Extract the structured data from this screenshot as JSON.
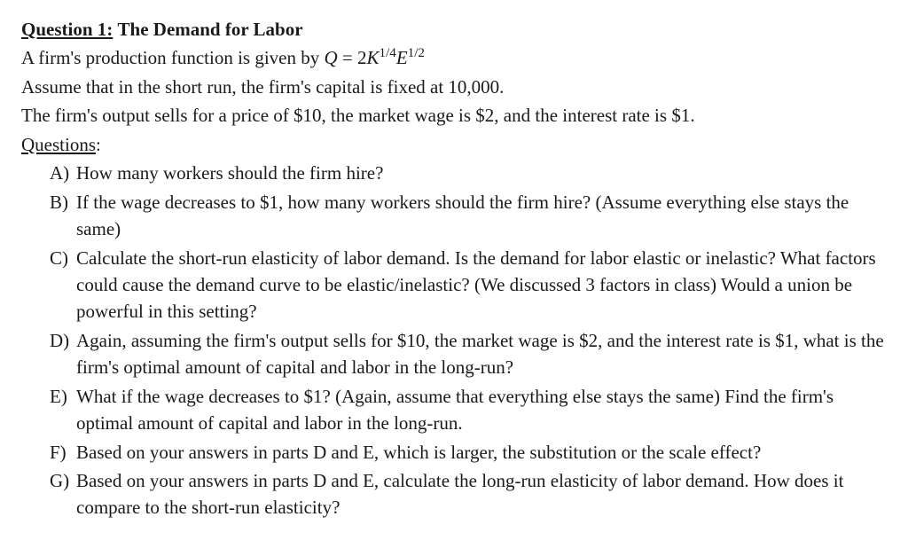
{
  "heading": {
    "label": "Question 1:",
    "title": "The Demand for Labor"
  },
  "intro": {
    "line1_a": "A firm's production function is given by ",
    "line1_q": "Q",
    "line1_eq": " = 2",
    "line1_k": "K",
    "line1_exp1": "1/4",
    "line1_e": "E",
    "line1_exp2": "1/2",
    "line2": "Assume that in the short run, the firm's capital is fixed at 10,000.",
    "line3": "The firm's output sells for a price of $10, the market wage is $2, and the interest rate is $1."
  },
  "questions_label": "Questions",
  "questions_colon": ":",
  "items": [
    {
      "marker": "A)",
      "text": "How many workers should the firm hire?"
    },
    {
      "marker": "B)",
      "text": "If the wage decreases to $1, how many workers should the firm hire?  (Assume everything else stays the same)"
    },
    {
      "marker": "C)",
      "text": "Calculate the short-run elasticity of labor demand.  Is the demand for labor elastic or inelastic?  What factors could cause the demand curve to be elastic/inelastic?  (We discussed 3 factors in class)  Would a union be powerful in this setting?"
    },
    {
      "marker": "D)",
      "text": "Again, assuming the firm's output sells for $10, the market wage is $2, and the interest rate is $1, what is the firm's optimal amount of capital and labor in the long-run?"
    },
    {
      "marker": "E)",
      "text": "What if the wage decreases to $1?  (Again, assume that everything else stays the same)  Find the firm's optimal amount of capital and labor in the long-run."
    },
    {
      "marker": "F)",
      "text": "Based on your answers in parts D and E, which is larger, the substitution or the scale effect?"
    },
    {
      "marker": "G)",
      "text": "Based on your answers in parts D and E, calculate the long-run elasticity of labor demand.  How does it compare to the short-run elasticity?"
    }
  ]
}
